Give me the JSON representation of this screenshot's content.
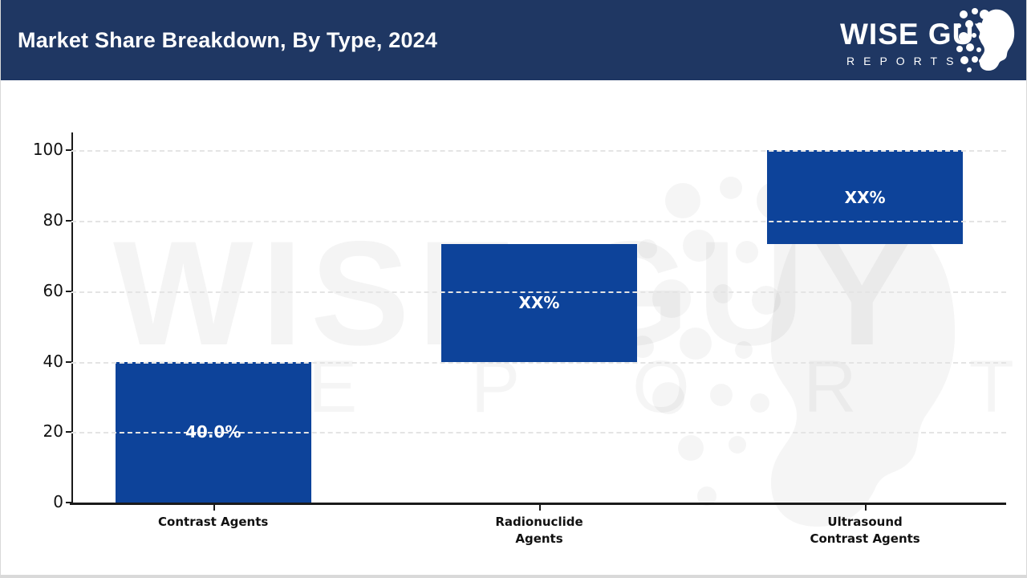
{
  "header": {
    "title": "Market Share Breakdown, By Type, 2024",
    "bg_color": "#1F3763",
    "logo": {
      "line1": "WISE GUY",
      "line2": "REPORTS"
    }
  },
  "watermark": {
    "line1": "WISE GUY",
    "line2": "REPORTS"
  },
  "chart_data": {
    "type": "bar",
    "subtype": "waterfall",
    "title": "Market Share Breakdown, By Type, 2024",
    "xlabel": "",
    "ylabel": "",
    "bar_color": "#0D439A",
    "grid": "horizontal-dashed, drawn over bars",
    "legend": "none",
    "ylim": [
      0,
      105
    ],
    "yticks": [
      0,
      20,
      40,
      60,
      80,
      100
    ],
    "categories": [
      {
        "lines": [
          "Contrast Agents"
        ]
      },
      {
        "lines": [
          "Radionuclide",
          "Agents"
        ]
      },
      {
        "lines": [
          "Ultrasound",
          "Contrast Agents"
        ]
      }
    ],
    "segments": [
      {
        "category": "Contrast Agents",
        "start": 0,
        "end": 40,
        "value": 40.0,
        "label": "40.0%"
      },
      {
        "category": "Radionuclide Agents",
        "start": 40,
        "end": 73.3,
        "value": 33.3,
        "label": "XX%"
      },
      {
        "category": "Ultrasound Contrast Agents",
        "start": 73.3,
        "end": 100,
        "value": 26.7,
        "label": "XX%"
      }
    ]
  }
}
